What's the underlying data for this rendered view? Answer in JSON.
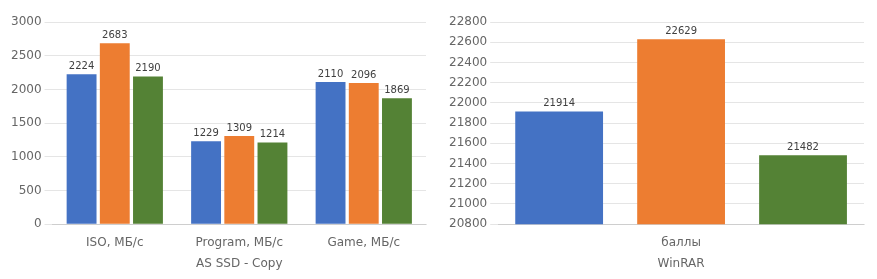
{
  "chart_data": [
    {
      "type": "bar",
      "xlabel": "AS SSD - Copy",
      "categories": [
        "ISO, МБ/c",
        "Program, МБ/c",
        "Game, МБ/c"
      ],
      "series": [
        {
          "color": "#4472C4",
          "values": [
            2224,
            1229,
            2110
          ]
        },
        {
          "color": "#ED7D31",
          "values": [
            2683,
            1309,
            2096
          ]
        },
        {
          "color": "#548235",
          "values": [
            2190,
            1214,
            1869
          ]
        }
      ],
      "ylim": [
        0,
        3000
      ],
      "yticks": [
        0,
        500,
        1000,
        1500,
        2000,
        2500,
        3000
      ],
      "grid": true,
      "data_labels": true
    },
    {
      "type": "bar",
      "xlabel": "WinRAR",
      "categories": [
        null,
        "баллы",
        null
      ],
      "values": [
        21914,
        22629,
        21482
      ],
      "colors": [
        "#4472C4",
        "#ED7D31",
        "#548235"
      ],
      "ylim": [
        20800,
        22800
      ],
      "yticks": [
        20800,
        21000,
        21200,
        21400,
        21600,
        21800,
        22000,
        22200,
        22400,
        22600,
        22800
      ],
      "grid": true,
      "data_labels": true
    }
  ]
}
